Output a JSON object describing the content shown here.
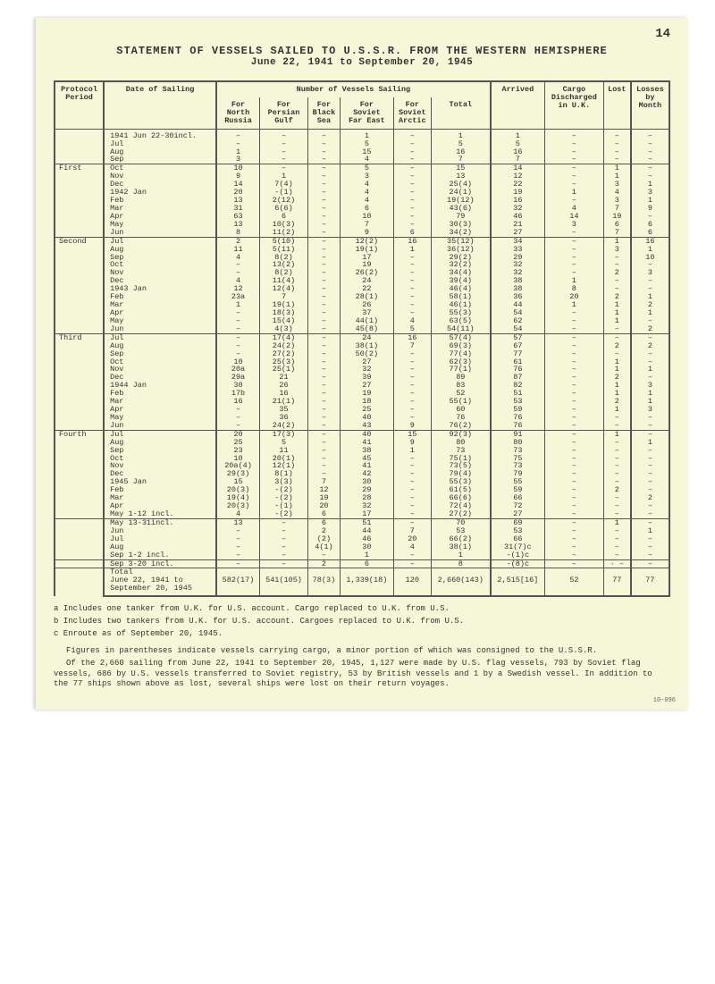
{
  "page_number": "14",
  "title_line1": "STATEMENT OF VESSELS SAILED TO U.S.S.R. FROM THE WESTERN HEMISPHERE",
  "title_line2": "June 22, 1941 to September 20, 1945",
  "headers": {
    "protocol": "Protocol\nPeriod",
    "date": "Date of Sailing",
    "group_sailing": "Number of Vessels Sailing",
    "north": "For\nNorth\nRussia",
    "gulf": "For\nPersian\nGulf",
    "black": "For\nBlack\nSea",
    "fareast": "For\nSoviet\nFar East",
    "arctic": "For\nSoviet\nArctic",
    "total": "Total",
    "arrived": "Arrived",
    "discharged": "Cargo\nDischarged\nin U.K.",
    "lost": "Lost",
    "losses": "Losses\nby\nMonth"
  },
  "groups": [
    {
      "proto": "",
      "rows": [
        {
          "d": "1941 Jun 22-30incl.",
          "v": [
            "–",
            "–",
            "–",
            "1",
            "–",
            "1",
            "1",
            "–",
            "–",
            "–"
          ]
        },
        {
          "d": "Jul",
          "v": [
            "–",
            "–",
            "–",
            "5",
            "–",
            "5",
            "5",
            "–",
            "–",
            "–"
          ]
        },
        {
          "d": "Aug",
          "v": [
            "1",
            "–",
            "–",
            "15",
            "–",
            "16",
            "16",
            "–",
            "–",
            "–"
          ]
        },
        {
          "d": "Sep",
          "v": [
            "3",
            "–",
            "–",
            "4",
            "–",
            "7",
            "7",
            "–",
            "–",
            "–"
          ]
        }
      ]
    },
    {
      "proto": "First",
      "rows": [
        {
          "d": "Oct",
          "v": [
            "10",
            "–",
            "–",
            "5",
            "–",
            "15",
            "14",
            "–",
            "1",
            "–"
          ]
        },
        {
          "d": "Nov",
          "v": [
            "9",
            "1",
            "–",
            "3",
            "–",
            "13",
            "12",
            "–",
            "1",
            "–"
          ]
        },
        {
          "d": "Dec",
          "v": [
            "14",
            "7(4)",
            "–",
            "4",
            "–",
            "25(4)",
            "22",
            "–",
            "3",
            "1"
          ]
        },
        {
          "d": "1942 Jan",
          "v": [
            "20",
            "-(1)",
            "–",
            "4",
            "–",
            "24(1)",
            "19",
            "1",
            "4",
            "3"
          ]
        },
        {
          "d": "Feb",
          "v": [
            "13",
            "2(12)",
            "–",
            "4",
            "–",
            "19(12)",
            "16",
            "–",
            "3",
            "1"
          ]
        },
        {
          "d": "Mar",
          "v": [
            "31",
            "6(6)",
            "–",
            "6",
            "–",
            "43(6)",
            "32",
            "4",
            "7",
            "9"
          ]
        },
        {
          "d": "Apr",
          "v": [
            "63",
            "6",
            "–",
            "10",
            "–",
            "79",
            "46",
            "14",
            "19",
            "–"
          ]
        },
        {
          "d": "May",
          "v": [
            "13",
            "10(3)",
            "–",
            "7",
            "–",
            "30(3)",
            "21",
            "3",
            "6",
            "6"
          ]
        },
        {
          "d": "Jun",
          "v": [
            "8",
            "11(2)",
            "–",
            "9",
            "6",
            "34(2)",
            "27",
            "–",
            "7",
            "6"
          ]
        }
      ]
    },
    {
      "proto": "Second",
      "rows": [
        {
          "d": "Jul",
          "v": [
            "2",
            "5(10)",
            "–",
            "12(2)",
            "16",
            "35(12)",
            "34",
            "–",
            "1",
            "16"
          ]
        },
        {
          "d": "Aug",
          "v": [
            "11",
            "5(11)",
            "–",
            "19(1)",
            "1",
            "36(12)",
            "33",
            "–",
            "3",
            "1"
          ]
        },
        {
          "d": "Sep",
          "v": [
            "4",
            "8(2)",
            "–",
            "17",
            "–",
            "29(2)",
            "29",
            "–",
            "–",
            "10"
          ]
        },
        {
          "d": "Oct",
          "v": [
            "–",
            "13(2)",
            "–",
            "19",
            "–",
            "32(2)",
            "32",
            "–",
            "–",
            "–"
          ]
        },
        {
          "d": "Nov",
          "v": [
            "–",
            "8(2)",
            "–",
            "26(2)",
            "–",
            "34(4)",
            "32",
            "–",
            "2",
            "3"
          ]
        },
        {
          "d": "Dec",
          "v": [
            "4",
            "11(4)",
            "–",
            "24",
            "–",
            "39(4)",
            "38",
            "1",
            "–",
            "–"
          ]
        },
        {
          "d": "1943 Jan",
          "v": [
            "12",
            "12(4)",
            "–",
            "22",
            "–",
            "46(4)",
            "38",
            "8",
            "–",
            "–"
          ]
        },
        {
          "d": "Feb",
          "v": [
            "23a",
            "7",
            "–",
            "28(1)",
            "–",
            "58(1)",
            "36",
            "20",
            "2",
            "1"
          ]
        },
        {
          "d": "Mar",
          "v": [
            "1",
            "19(1)",
            "–",
            "26",
            "–",
            "46(1)",
            "44",
            "1",
            "1",
            "2"
          ]
        },
        {
          "d": "Apr",
          "v": [
            "–",
            "18(3)",
            "–",
            "37",
            "–",
            "55(3)",
            "54",
            "–",
            "1",
            "1"
          ]
        },
        {
          "d": "May",
          "v": [
            "–",
            "15(4)",
            "–",
            "44(1)",
            "4",
            "63(5)",
            "62",
            "–",
            "1",
            "–"
          ]
        },
        {
          "d": "Jun",
          "v": [
            "–",
            "4(3)",
            "–",
            "45(8)",
            "5",
            "54(11)",
            "54",
            "–",
            "–",
            "2"
          ]
        }
      ]
    },
    {
      "proto": "Third",
      "rows": [
        {
          "d": "Jul",
          "v": [
            "–",
            "17(4)",
            "–",
            "24",
            "16",
            "57(4)",
            "57",
            "–",
            "–",
            "–"
          ]
        },
        {
          "d": "Aug",
          "v": [
            "–",
            "24(2)",
            "–",
            "38(1)",
            "7",
            "69(3)",
            "67",
            "–",
            "2",
            "2"
          ]
        },
        {
          "d": "Sep",
          "v": [
            "–",
            "27(2)",
            "–",
            "50(2)",
            "–",
            "77(4)",
            "77",
            "–",
            "–",
            "–"
          ]
        },
        {
          "d": "Oct",
          "v": [
            "10",
            "25(3)",
            "–",
            "27",
            "–",
            "62(3)",
            "61",
            "–",
            "1",
            "–"
          ]
        },
        {
          "d": "Nov",
          "v": [
            "20a",
            "25(1)",
            "–",
            "32",
            "–",
            "77(1)",
            "76",
            "–",
            "1",
            "1"
          ]
        },
        {
          "d": "Dec",
          "v": [
            "29a",
            "21",
            "–",
            "39",
            "–",
            "89",
            "87",
            "–",
            "2",
            "–"
          ]
        },
        {
          "d": "1944 Jan",
          "v": [
            "30",
            "26",
            "–",
            "27",
            "–",
            "83",
            "82",
            "–",
            "1",
            "3"
          ]
        },
        {
          "d": "Feb",
          "v": [
            "17b",
            "16",
            "–",
            "19",
            "–",
            "52",
            "51",
            "–",
            "1",
            "1"
          ]
        },
        {
          "d": "Mar",
          "v": [
            "16",
            "21(1)",
            "–",
            "18",
            "–",
            "55(1)",
            "53",
            "–",
            "2",
            "1"
          ]
        },
        {
          "d": "Apr",
          "v": [
            "–",
            "35",
            "–",
            "25",
            "–",
            "60",
            "59",
            "–",
            "1",
            "3"
          ]
        },
        {
          "d": "May",
          "v": [
            "–",
            "36",
            "–",
            "40",
            "–",
            "76",
            "76",
            "–",
            "–",
            "–"
          ]
        },
        {
          "d": "Jun",
          "v": [
            "–",
            "24(2)",
            "–",
            "43",
            "9",
            "76(2)",
            "76",
            "–",
            "–",
            "–"
          ]
        }
      ]
    },
    {
      "proto": "Fourth",
      "rows": [
        {
          "d": "Jul",
          "v": [
            "20",
            "17(3)",
            "–",
            "40",
            "15",
            "92(3)",
            "91",
            "–",
            "1",
            "–"
          ]
        },
        {
          "d": "Aug",
          "v": [
            "25",
            "5",
            "–",
            "41",
            "9",
            "80",
            "80",
            "–",
            "–",
            "1"
          ]
        },
        {
          "d": "Sep",
          "v": [
            "23",
            "11",
            "–",
            "38",
            "1",
            "73",
            "73",
            "–",
            "–",
            "–"
          ]
        },
        {
          "d": "Oct",
          "v": [
            "10",
            "20(1)",
            "–",
            "45",
            "–",
            "75(1)",
            "75",
            "–",
            "–",
            "–"
          ]
        },
        {
          "d": "Nov",
          "v": [
            "20a(4)",
            "12(1)",
            "–",
            "41",
            "–",
            "73(5)",
            "73",
            "–",
            "–",
            "–"
          ]
        },
        {
          "d": "Dec",
          "v": [
            "29(3)",
            "8(1)",
            "–",
            "42",
            "–",
            "79(4)",
            "79",
            "–",
            "–",
            "–"
          ]
        },
        {
          "d": "1945 Jan",
          "v": [
            "15",
            "3(3)",
            "7",
            "30",
            "–",
            "55(3)",
            "55",
            "–",
            "–",
            "–"
          ]
        },
        {
          "d": "Feb",
          "v": [
            "20(3)",
            "-(2)",
            "12",
            "29",
            "–",
            "61(5)",
            "59",
            "–",
            "2",
            "–"
          ]
        },
        {
          "d": "Mar",
          "v": [
            "19(4)",
            "-(2)",
            "19",
            "28",
            "–",
            "66(6)",
            "66",
            "–",
            "–",
            "2"
          ]
        },
        {
          "d": "Apr",
          "v": [
            "20(3)",
            "-(1)",
            "20",
            "32",
            "–",
            "72(4)",
            "72",
            "–",
            "–",
            "–"
          ]
        },
        {
          "d": "May 1-12 incl.",
          "v": [
            "4",
            "-(2)",
            "6",
            "17",
            "–",
            "27(2)",
            "27",
            "–",
            "–",
            "–"
          ]
        }
      ]
    },
    {
      "proto": "",
      "rows": [
        {
          "d": "May 13-31incl.",
          "v": [
            "13",
            "–",
            "6",
            "51",
            "–",
            "70",
            "69",
            "–",
            "1",
            "–"
          ]
        },
        {
          "d": "Jun",
          "v": [
            "–",
            "–",
            "2",
            "44",
            "7",
            "53",
            "53",
            "–",
            "–",
            "1"
          ]
        },
        {
          "d": "Jul",
          "v": [
            "–",
            "–",
            "(2)",
            "46",
            "20",
            "66(2)",
            "66",
            "–",
            "–",
            "–"
          ]
        },
        {
          "d": "Aug",
          "v": [
            "–",
            "–",
            "4(1)",
            "30",
            "4",
            "38(1)",
            "31(7)c",
            "–",
            "–",
            "–"
          ]
        },
        {
          "d": "Sep 1-2 incl.",
          "v": [
            "–",
            "–",
            "–",
            "1",
            "–",
            "1",
            "-(1)c",
            "–",
            "–",
            "–"
          ]
        }
      ]
    },
    {
      "proto": "",
      "rows": [
        {
          "d": "Sep 3-20 incl.",
          "v": [
            "–",
            "–",
            "2",
            "6",
            "–",
            "8",
            "-(8)c",
            "–",
            "· –",
            "–"
          ]
        }
      ]
    },
    {
      "proto": "",
      "rows": [
        {
          "d": "Total",
          "v": [
            "",
            "",
            "",
            "",
            "",
            "",
            "",
            "",
            "",
            ""
          ]
        },
        {
          "d": "  June 22, 1941 to",
          "v": [
            "582(17)",
            "541(105)",
            "78(3)",
            "1,339(18)",
            "120",
            "2,660(143)",
            "2,515[16]",
            "52",
            "77",
            "77"
          ]
        },
        {
          "d": "  September 20, 1945",
          "v": [
            "",
            "",
            "",
            "",
            "",
            "",
            "",
            "",
            "",
            ""
          ]
        }
      ]
    }
  ],
  "footnotes": {
    "a": "a  Includes one tanker from U.K. for U.S. account.  Cargo replaced to U.K. from U.S.",
    "b": "b  Includes two tankers from U.K. for U.S. account.  Cargoes replaced to U.K. from U.S.",
    "c": "c  Enroute as of September 20, 1945.",
    "paren": "Figures in parentheses indicate vessels carrying cargo, a minor portion of which was consigned to the U.S.S.R.",
    "para": "Of the 2,660 sailing from June 22, 1941 to September 20, 1945, 1,127 were made by U.S. flag vessels, 793 by Soviet flag vessels, 686 by U.S. vessels transferred to Soviet registry, 53 by British vessels and 1 by a Swedish vessel.  In addition to the 77 ships shown above as lost, several ships were lost on their return voyages."
  },
  "smallprint": "10-096"
}
